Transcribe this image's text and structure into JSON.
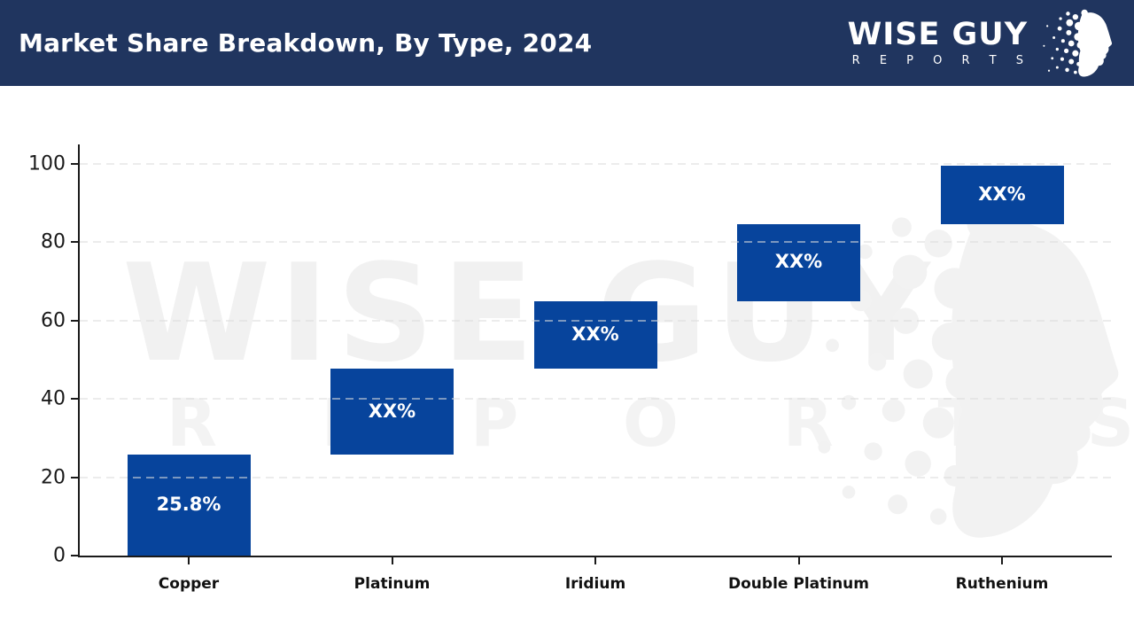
{
  "header": {
    "title": "Market Share Breakdown, By Type, 2024",
    "bg_color": "#20355f",
    "logo": {
      "line1": "WISE GUY",
      "line2": "R E P O R T S",
      "face_icon": "dotted-head-profile"
    }
  },
  "watermark": {
    "line1": "WISE GUY",
    "line2": "R E P O R T S"
  },
  "chart_data": {
    "type": "bar",
    "subtype": "waterfall-floating-bars",
    "title": "Market Share Breakdown, By Type, 2024",
    "xlabel": "",
    "ylabel": "",
    "categories": [
      "Copper",
      "Platinum",
      "Iridium",
      "Double Platinum",
      "Ruthenium"
    ],
    "segments": [
      {
        "category": "Copper",
        "start": 0,
        "end": 25.8,
        "label": "25.8%"
      },
      {
        "category": "Platinum",
        "start": 25.8,
        "end": 47.7,
        "label": "XX%"
      },
      {
        "category": "Iridium",
        "start": 47.7,
        "end": 65.0,
        "label": "XX%"
      },
      {
        "category": "Double Platinum",
        "start": 65.0,
        "end": 84.6,
        "label": "XX%"
      },
      {
        "category": "Ruthenium",
        "start": 84.6,
        "end": 99.5,
        "label": "XX%"
      }
    ],
    "yticks": [
      0,
      20,
      40,
      60,
      80,
      100
    ],
    "ylim": [
      0,
      105
    ],
    "grid": true,
    "grid_style": "dashed",
    "legend": "none",
    "bar_color": "#07449c",
    "bar_label_color": "#ffffff",
    "axis_color": "#1a1a1a",
    "gridline_color": "#dcdcdc"
  }
}
